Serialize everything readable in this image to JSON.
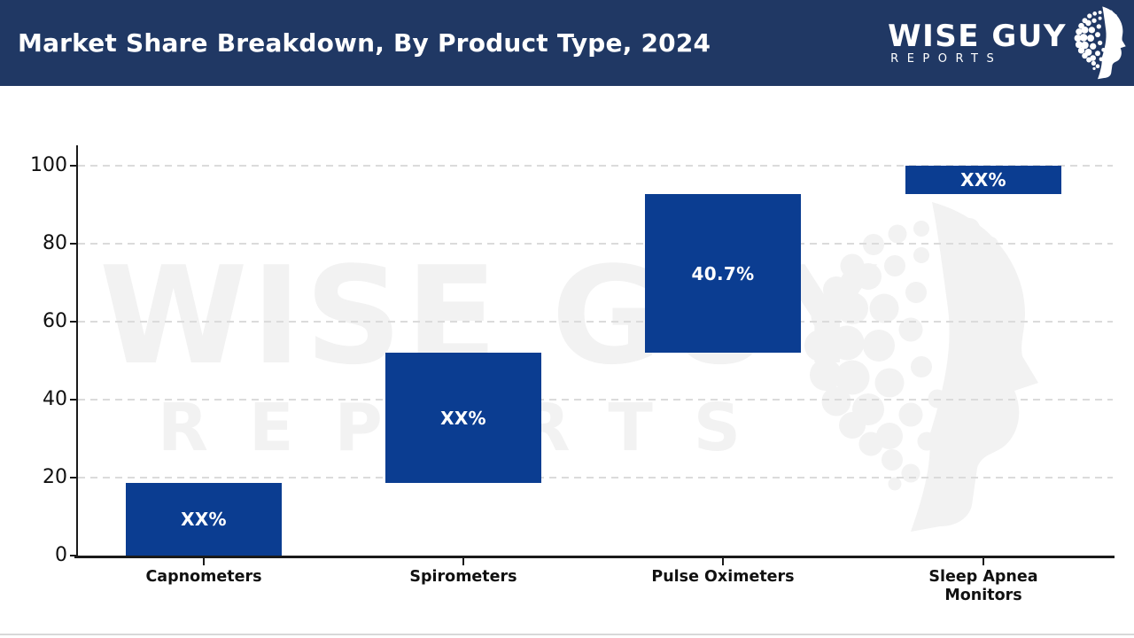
{
  "header": {
    "title": "Market Share Breakdown, By Product Type, 2024",
    "background_color": "#203864",
    "brand": {
      "line1": "WISE GUY",
      "line2": "REPORTS"
    }
  },
  "watermark": {
    "line1": "WISE GUY",
    "line2": "REPORTS"
  },
  "chart_data": {
    "type": "bar",
    "subtype": "waterfall",
    "title": "Market Share Breakdown, By Product Type, 2024",
    "categories": [
      "Capnometers",
      "Spirometers",
      "Pulse Oximeters",
      "Sleep Apnea Monitors"
    ],
    "segments": [
      {
        "category": "Capnometers",
        "start": 0,
        "end": 18.6,
        "label": "XX%"
      },
      {
        "category": "Spirometers",
        "start": 18.6,
        "end": 52.0,
        "label": "XX%"
      },
      {
        "category": "Pulse Oximeters",
        "start": 52.0,
        "end": 92.7,
        "label": "40.7%",
        "value": 40.7
      },
      {
        "category": "Sleep Apnea Monitors",
        "start": 92.7,
        "end": 100,
        "label": "XX%"
      }
    ],
    "y_ticks": [
      0,
      20,
      40,
      60,
      80,
      100
    ],
    "ylim": [
      0,
      100
    ],
    "xlabel": "",
    "ylabel": "",
    "grid": "horizontal-dashed",
    "legend": "none",
    "bar_color": "#0b3d91",
    "bar_label_color": "#ffffff",
    "grid_color": "#dbdbdb",
    "axis_color": "#1a1a1a",
    "watermark_color": "#f2f2f2"
  }
}
